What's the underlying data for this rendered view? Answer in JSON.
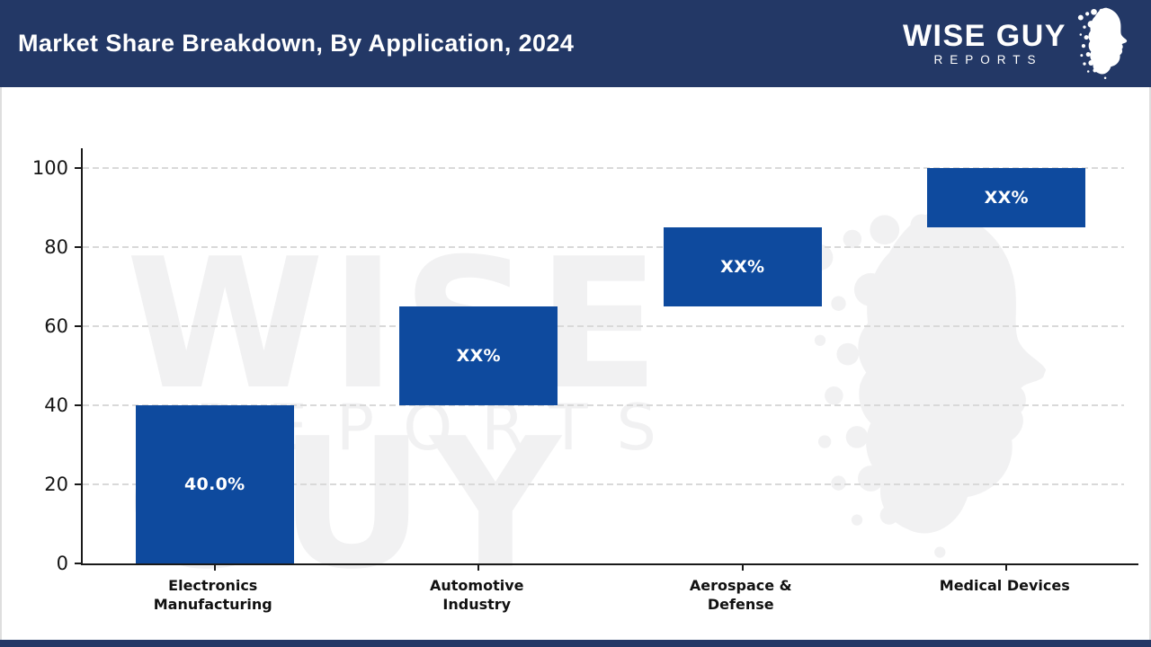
{
  "header": {
    "title": "Market Share Breakdown, By Application, 2024",
    "brand": {
      "line1": "WISE GUY",
      "line2": "REPORTS"
    }
  },
  "watermark": {
    "line1": "WISE GUY",
    "line2": "REPORTS"
  },
  "chart_data": {
    "type": "bar",
    "subtype": "waterfall",
    "title": "Market Share Breakdown, By Application, 2024",
    "categories": [
      "Electronics Manufacturing",
      "Automotive Industry",
      "Aerospace & Defense",
      "Medical Devices"
    ],
    "category_lines": [
      [
        "Electronics",
        "Manufacturing"
      ],
      [
        "Automotive",
        "Industry"
      ],
      [
        "Aerospace &",
        "Defense"
      ],
      [
        "Medical Devices"
      ]
    ],
    "segments": [
      {
        "category": "Electronics Manufacturing",
        "start": 0,
        "end": 40,
        "label": "40.0%"
      },
      {
        "category": "Automotive Industry",
        "start": 40,
        "end": 65,
        "label": "XX%"
      },
      {
        "category": "Aerospace & Defense",
        "start": 65,
        "end": 85,
        "label": "XX%"
      },
      {
        "category": "Medical Devices",
        "start": 85,
        "end": 100,
        "label": "XX%"
      }
    ],
    "ylim": [
      0,
      100
    ],
    "yticks": [
      0,
      20,
      40,
      60,
      80,
      100
    ],
    "xlabel": "",
    "ylabel": "",
    "grid": "horizontal-dashed",
    "legend": "none"
  },
  "colors": {
    "header_bg": "#233866",
    "footer_bg": "#233866",
    "bar": "#0e4a9e",
    "bar_label": "#ffffff",
    "grid": "#d9d9d9",
    "axis": "#1a1a1a",
    "watermark": "#f1f1f2"
  }
}
